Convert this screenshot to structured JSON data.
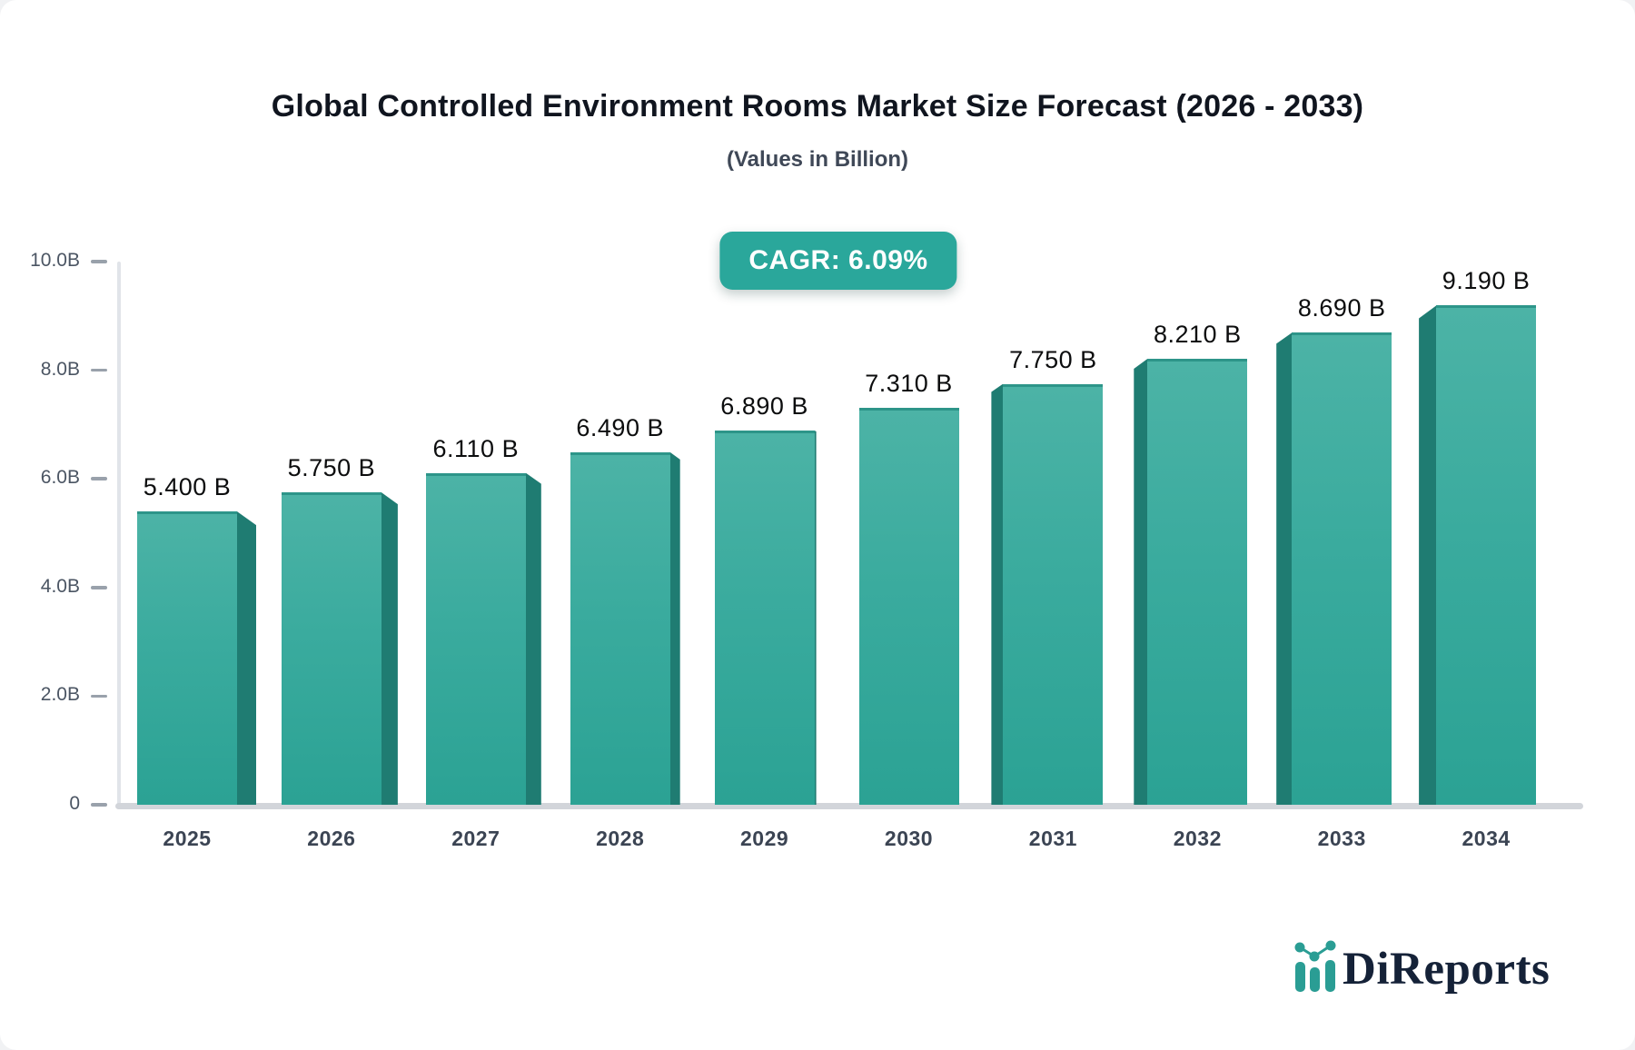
{
  "title": "Global Controlled Environment Rooms Market Size Forecast (2026 - 2033)",
  "subtitle": "(Values in Billion)",
  "badge": {
    "label": "CAGR: 6.09%"
  },
  "logo": {
    "text": "DiReports",
    "icon": "mini-analytics-icon"
  },
  "chart_data": {
    "type": "bar",
    "title": "Global Controlled Environment Rooms Market Size Forecast (2026 - 2033)",
    "subtitle": "(Values in Billion)",
    "categories": [
      "2025",
      "2026",
      "2027",
      "2028",
      "2029",
      "2030",
      "2031",
      "2032",
      "2033",
      "2034"
    ],
    "values": [
      5.4,
      5.75,
      6.11,
      6.49,
      6.89,
      7.31,
      7.75,
      8.21,
      8.69,
      9.19
    ],
    "value_labels": [
      "5.400 B",
      "5.750 B",
      "6.110 B",
      "6.490 B",
      "6.890 B",
      "7.310 B",
      "7.750 B",
      "8.210 B",
      "8.690 B",
      "9.190 B"
    ],
    "xlabel": "",
    "ylabel": "",
    "ylim": [
      0,
      10
    ],
    "ytick_values": [
      0,
      2,
      4,
      6,
      8,
      10
    ],
    "ytick_labels": [
      "0",
      "2.0B",
      "4.0B",
      "6.0B",
      "8.0B",
      "10.0B"
    ],
    "grid": false,
    "legend": null,
    "annotations": [
      "CAGR: 6.09%"
    ],
    "colors": {
      "bar_top": "#4cb3a6",
      "bar_bottom": "#2ba294",
      "bar_edge": "#2d9589",
      "bar_side": "#1f7c72",
      "axis_line": "#e1e4e9",
      "baseline": "#d2d5da",
      "tick": "#99a1ab",
      "tick_label": "#4b5563",
      "xtick_label": "#3b4453",
      "value_label": "#0c0d0e",
      "badge_bg": "#2aa79b",
      "badge_text": "#ffffff",
      "logo_text": "#152238",
      "logo_accent": "#2a9d94"
    }
  }
}
